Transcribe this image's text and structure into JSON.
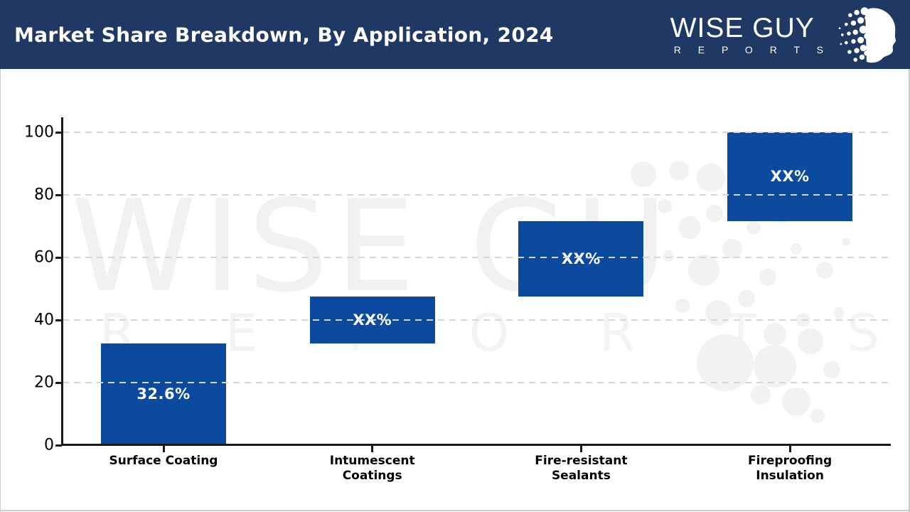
{
  "header": {
    "title": "Market Share Breakdown, By Application, 2024",
    "bg_color": "#1f3864",
    "brand": {
      "name": "WISE GUY",
      "sub": "R E P O R T S"
    }
  },
  "watermark": {
    "line1": "WISE GU",
    "line2": "R E P O R T S"
  },
  "chart_data": {
    "type": "bar",
    "subtype": "waterfall",
    "title": "Market Share Breakdown, By Application, 2024",
    "categories": [
      "Surface Coating",
      "Intumescent Coatings",
      "Fire-resistant Sealants",
      "Fireproofing Insulation"
    ],
    "category_display": [
      "Surface Coating",
      "Intumescent\nCoatings",
      "Fire-resistant\nSealants",
      "Fireproofing\nInsulation"
    ],
    "segments": [
      {
        "category": "Surface Coating",
        "start": 0,
        "end": 32.6,
        "label": "32.6%"
      },
      {
        "category": "Intumescent Coatings",
        "start": 32.6,
        "end": 47.6,
        "label": "XX%"
      },
      {
        "category": "Fire-resistant Sealants",
        "start": 47.6,
        "end": 71.6,
        "label": "XX%"
      },
      {
        "category": "Fireproofing Insulation",
        "start": 71.6,
        "end": 100,
        "label": "XX%"
      }
    ],
    "ylim": [
      0,
      100
    ],
    "yticks": [
      0,
      20,
      40,
      60,
      80,
      100
    ],
    "grid": "horizontal dashed, drawn over bars",
    "legend": "none",
    "bar_color": "#0b4a9e",
    "value_label_color": "#ffffff",
    "axis_color": "#1a1a1a"
  }
}
